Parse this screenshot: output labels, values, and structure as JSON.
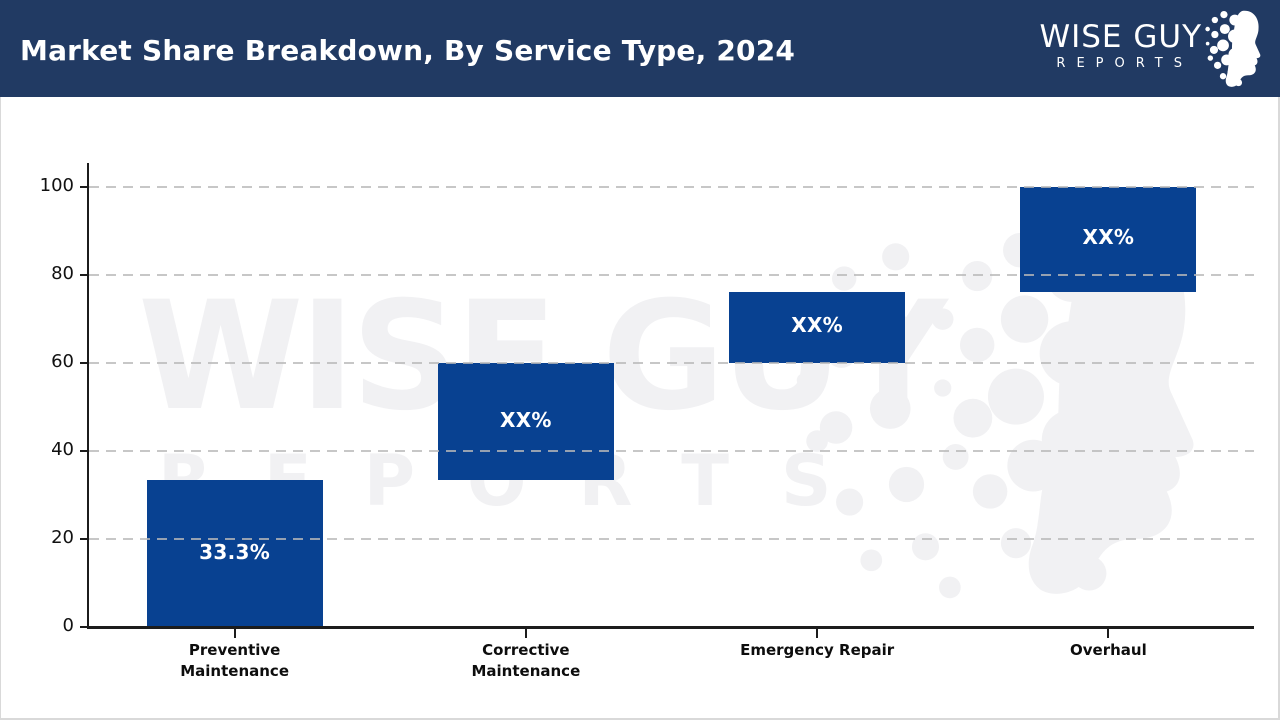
{
  "header": {
    "title": "Market Share Breakdown, By Service Type, 2024",
    "logo": {
      "line1": "WISE GUY",
      "line2": "REPORTS"
    }
  },
  "watermark": {
    "line1": "WISE GUY",
    "line2": "REPORTS"
  },
  "colors": {
    "header_bg": "#213a63",
    "bar": "#084191",
    "bar_label": "#ffffff",
    "grid": "#bbbbbb",
    "axis": "#1c1c1c",
    "watermark": "#f1f1f3",
    "frame": "#d9d9d9"
  },
  "chart_data": {
    "type": "bar",
    "subtype": "waterfall",
    "title": "Market Share Breakdown, By Service Type, 2024",
    "categories": [
      "Preventive Maintenance",
      "Corrective Maintenance",
      "Emergency Repair",
      "Overhaul"
    ],
    "category_lines": [
      [
        "Preventive",
        "Maintenance"
      ],
      [
        "Corrective",
        "Maintenance"
      ],
      [
        "Emergency Repair"
      ],
      [
        "Overhaul"
      ]
    ],
    "segments": [
      {
        "label": "33.3%",
        "start": 0,
        "end": 33.3
      },
      {
        "label": "XX%",
        "start": 33.3,
        "end": 60
      },
      {
        "label": "XX%",
        "start": 60,
        "end": 76.2
      },
      {
        "label": "XX%",
        "start": 76.2,
        "end": 100
      }
    ],
    "yticks": [
      0,
      20,
      40,
      60,
      80,
      100
    ],
    "ylim": [
      0,
      100
    ],
    "grid": "dashed-horizontal",
    "legend": "none",
    "bar_color": "#084191",
    "value_label_color": "#ffffff"
  }
}
